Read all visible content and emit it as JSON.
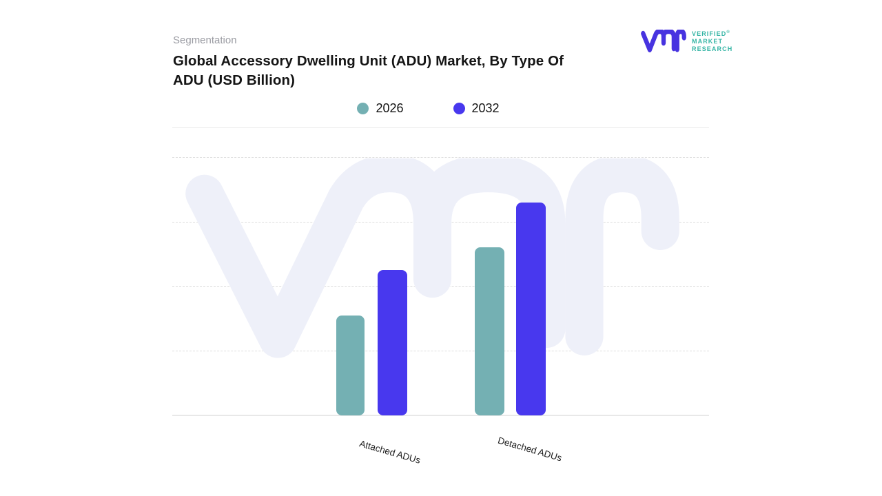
{
  "header": {
    "eyebrow": "Segmentation",
    "title_line1": "Global Accessory Dwelling Unit (ADU) Market, By Type Of",
    "title_line2": "ADU (USD Billion)"
  },
  "logo": {
    "monogram_icon": "vmr-monogram",
    "monogram_color": "#4733e0",
    "text_color": "#35b5a5",
    "line1": "VERIFIED",
    "registered": "®",
    "line2": "MARKET",
    "line3": "RESEARCH"
  },
  "legend": {
    "items": [
      {
        "label": "2026",
        "color": "#74b0b3"
      },
      {
        "label": "2032",
        "color": "#4838ee"
      }
    ]
  },
  "chart_data": {
    "type": "bar",
    "title": "Global Accessory Dwelling Unit (ADU) Market, By Type Of ADU (USD Billion)",
    "categories": [
      "Attached ADUs",
      "Detached ADUs"
    ],
    "series": [
      {
        "name": "2026",
        "color": "#74b0b3",
        "values": [
          1.55,
          2.6
        ]
      },
      {
        "name": "2032",
        "color": "#4838ee",
        "values": [
          2.25,
          3.3
        ]
      }
    ],
    "xlabel": "",
    "ylabel": "",
    "ylim": [
      0,
      4
    ],
    "value_axis_visible": false,
    "grid": "horizontal-dashed",
    "legend_position": "top-center"
  },
  "watermark": {
    "icon": "vmr-monogram",
    "color": "#eef0f9"
  }
}
